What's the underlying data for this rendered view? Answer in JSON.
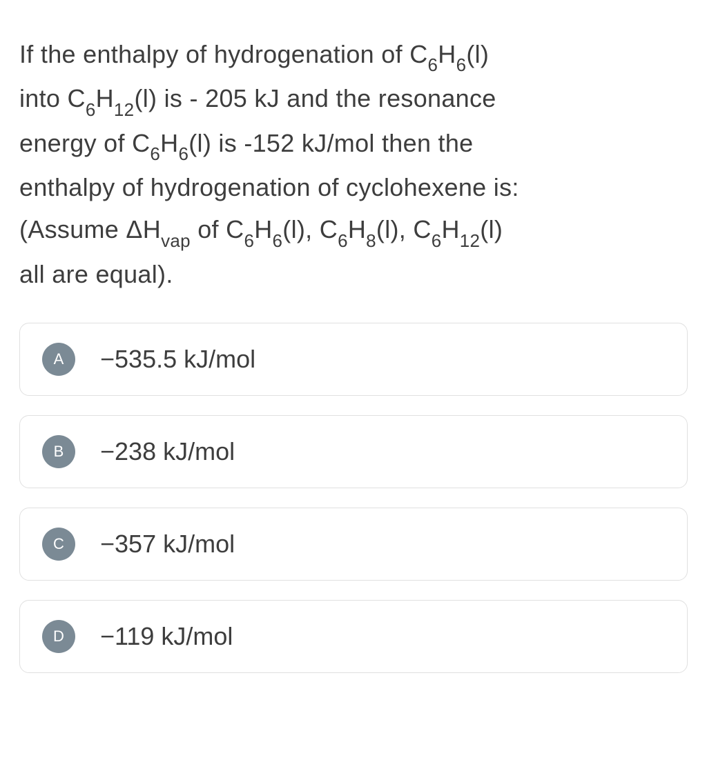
{
  "question": {
    "line1_pre": "If the enthalpy of hydrogenation of C",
    "line1_sub1": "6",
    "line1_mid1": "H",
    "line1_sub2": "6",
    "line1_post1": "(l)",
    "line2_pre": "into C",
    "line2_sub1": "6",
    "line2_mid1": "H",
    "line2_sub2": "12",
    "line2_post1": "(l) is - 205 kJ and the resonance",
    "line3_pre": "energy of C",
    "line3_sub1": "6",
    "line3_mid1": "H",
    "line3_sub2": "6",
    "line3_post1": "(l) is -152 kJ/mol then the",
    "line4": "enthalpy of hydrogenation of cyclohexene is:",
    "line5_pre": "(Assume ΔH",
    "line5_sub1": "vap",
    "line5_mid1": " of C",
    "line5_sub2": "6",
    "line5_mid2": "H",
    "line5_sub3": "6",
    "line5_mid3": "(l),  C",
    "line5_sub4": "6",
    "line5_mid4": "H",
    "line5_sub5": "8",
    "line5_mid5": "(l),  C",
    "line5_sub6": "6",
    "line5_mid6": "H",
    "line5_sub7": "12",
    "line5_post": "(l)",
    "line6": "all are equal)."
  },
  "options": {
    "a": {
      "letter": "A",
      "text": "−535.5 kJ/mol"
    },
    "b": {
      "letter": "B",
      "text": "−238 kJ/mol"
    },
    "c": {
      "letter": "C",
      "text": "−357 kJ/mol"
    },
    "d": {
      "letter": "D",
      "text": "−119 kJ/mol"
    }
  },
  "styling": {
    "text_color": "#3d3d3d",
    "badge_bg": "#7b8a95",
    "badge_fg": "#ffffff",
    "option_border": "#e0e0e0",
    "option_radius": 14,
    "question_fontsize": 36,
    "option_fontsize": 36,
    "sub_fontsize": 26,
    "badge_size": 48,
    "badge_fontsize": 22
  }
}
